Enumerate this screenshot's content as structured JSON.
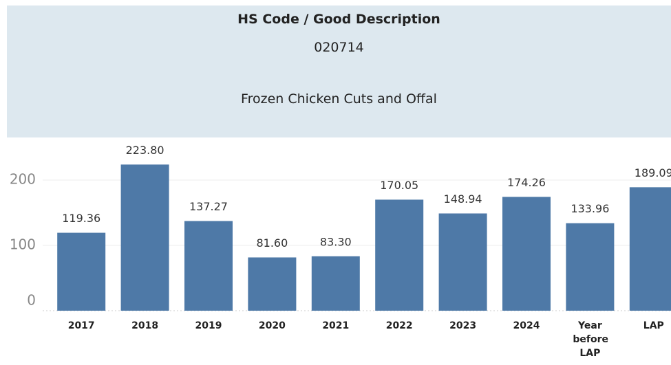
{
  "header": {
    "title": "HS Code / Good Description",
    "code": "020714",
    "description": "Frozen Chicken Cuts and Offal"
  },
  "chart_data": {
    "type": "bar",
    "categories": [
      "2017",
      "2018",
      "2019",
      "2020",
      "2021",
      "2022",
      "2023",
      "2024",
      "Year before LAP",
      "LAP"
    ],
    "values": [
      119.36,
      223.8,
      137.27,
      81.6,
      83.3,
      170.05,
      148.94,
      174.26,
      133.96,
      189.09
    ],
    "value_labels": [
      "119.36",
      "223.80",
      "137.27",
      "81.60",
      "83.30",
      "170.05",
      "148.94",
      "174.26",
      "133.96",
      "189.09"
    ],
    "color": "#4e79a7",
    "ylim": [
      0,
      260
    ],
    "yticks": [
      0,
      100,
      200
    ],
    "grid": true
  }
}
